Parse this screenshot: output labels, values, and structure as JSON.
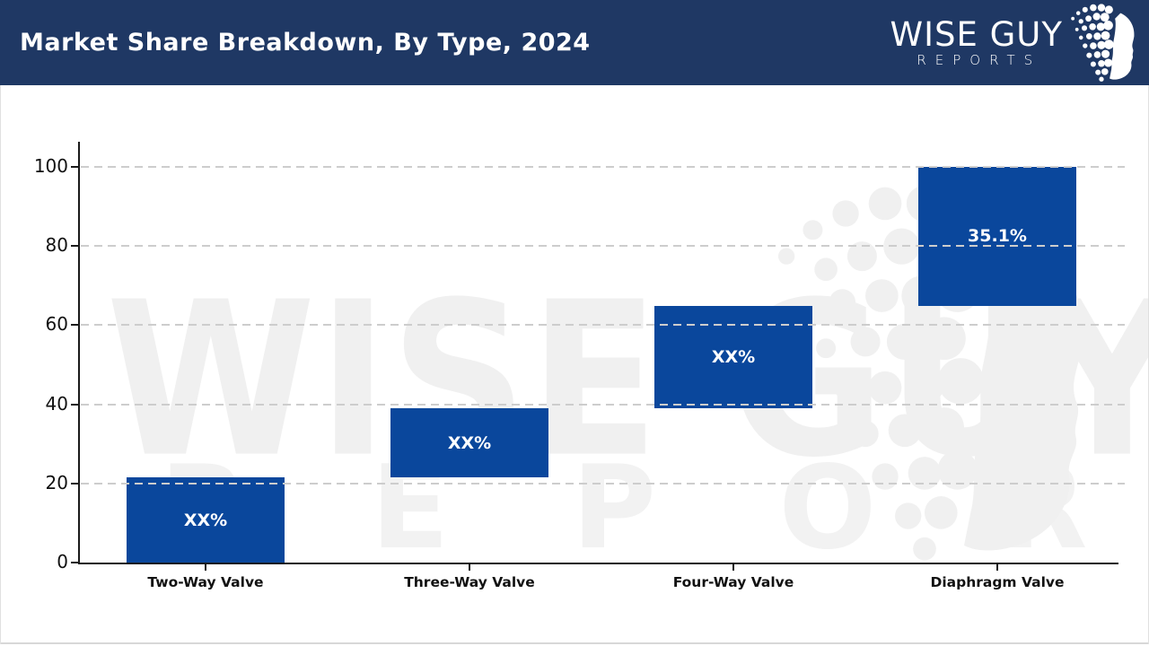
{
  "header": {
    "title": "Market Share Breakdown, By Type, 2024",
    "bg_color": "#1f3864",
    "logo": {
      "line1": "WISE GUY",
      "line2": "REPORTS"
    }
  },
  "watermark": {
    "line1": "WISE GUY",
    "line2": "R E P O R T S"
  },
  "chart_data": {
    "type": "bar",
    "variant": "waterfall",
    "title": "Market Share Breakdown, By Type, 2024",
    "categories": [
      "Two-Way Valve",
      "Three-Way Valve",
      "Four-Way Valve",
      "Diaphragm Valve"
    ],
    "bars": [
      {
        "category": "Two-Way Valve",
        "start": 0,
        "end": 21.5,
        "value_label": "XX%"
      },
      {
        "category": "Three-Way Valve",
        "start": 21.5,
        "end": 39.0,
        "value_label": "XX%"
      },
      {
        "category": "Four-Way Valve",
        "start": 39.0,
        "end": 64.9,
        "value_label": "XX%"
      },
      {
        "category": "Diaphragm Valve",
        "start": 64.9,
        "end": 100.0,
        "value_label": "35.1%"
      }
    ],
    "yticks": [
      0,
      20,
      40,
      60,
      80,
      100
    ],
    "ylim": [
      0,
      106
    ],
    "xlabel": "",
    "ylabel": "",
    "grid": "horizontal-dashed",
    "legend": "none",
    "bar_color": "#0a479c",
    "bar_label_color": "#ffffff",
    "axis_color": "#1a1a1a",
    "gridline_color": "#cdcdcd"
  }
}
